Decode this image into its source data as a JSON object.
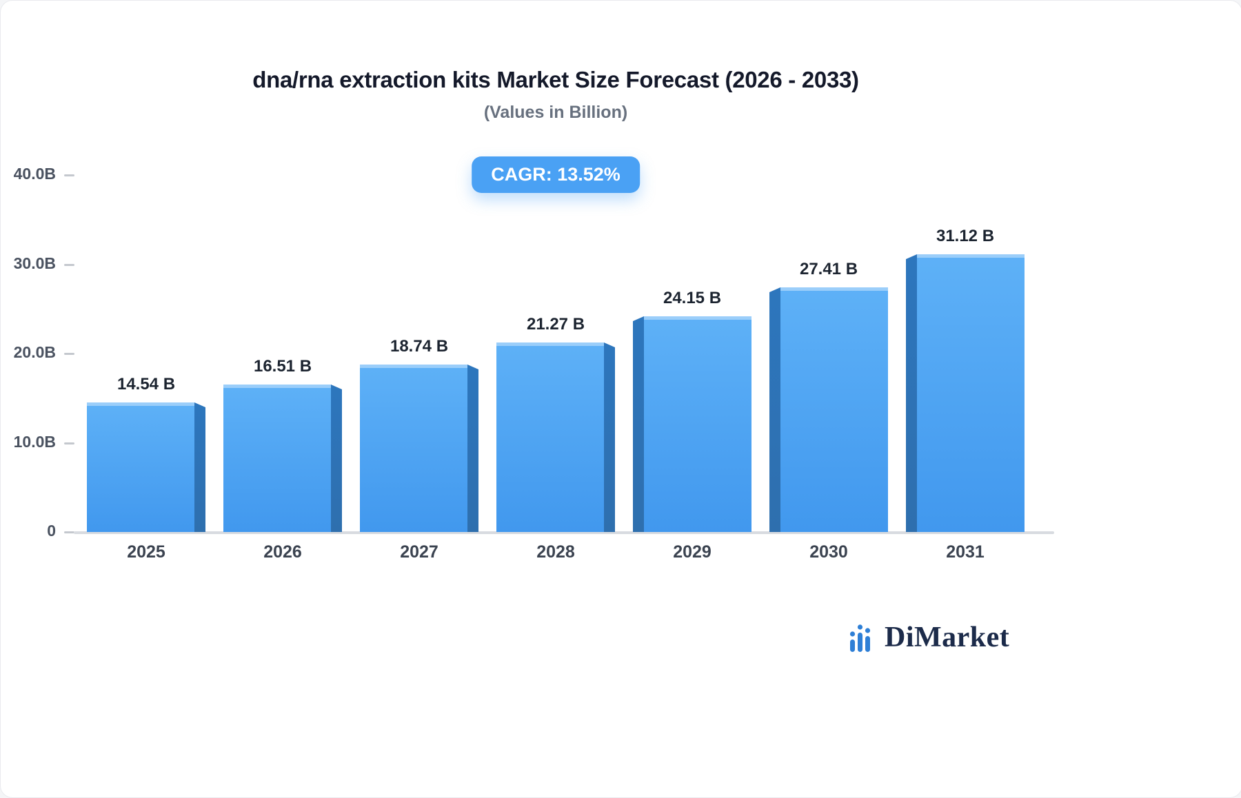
{
  "title": "dna/rna extraction kits Market Size Forecast (2026 - 2033)",
  "subtitle": "(Values in Billion)",
  "badge": {
    "text": "CAGR: 13.52%",
    "background": "#4AA1F4"
  },
  "logo": {
    "text": "DiMarket",
    "icon": "bar-chart-icon",
    "text_color": "#1C2B4A",
    "icon_color": "#2E7FD6"
  },
  "chart_data": {
    "type": "bar",
    "title": "dna/rna extraction kits Market Size Forecast (2026 - 2033)",
    "subtitle": "(Values in Billion)",
    "cagr_label": "CAGR: 13.52%",
    "categories": [
      "2025",
      "2026",
      "2027",
      "2028",
      "2029",
      "2030",
      "2031"
    ],
    "values": [
      14.54,
      16.51,
      18.74,
      21.27,
      24.15,
      27.41,
      31.12
    ],
    "value_labels": [
      "14.54 B",
      "16.51 B",
      "18.74 B",
      "21.27 B",
      "24.15 B",
      "27.41 B",
      "31.12 B"
    ],
    "ylim": [
      0,
      40
    ],
    "yticks": [
      {
        "label": "40.0B",
        "value": 40
      },
      {
        "label": "30.0B",
        "value": 30
      },
      {
        "label": "20.0B",
        "value": 20
      },
      {
        "label": "10.0B",
        "value": 10
      },
      {
        "label": "0",
        "value": 0
      }
    ],
    "grid": false,
    "legend": false,
    "bar_color_top": "#5EB1F7",
    "bar_color_bottom": "#4198EE",
    "bar_side_color": "#2D74BA"
  }
}
